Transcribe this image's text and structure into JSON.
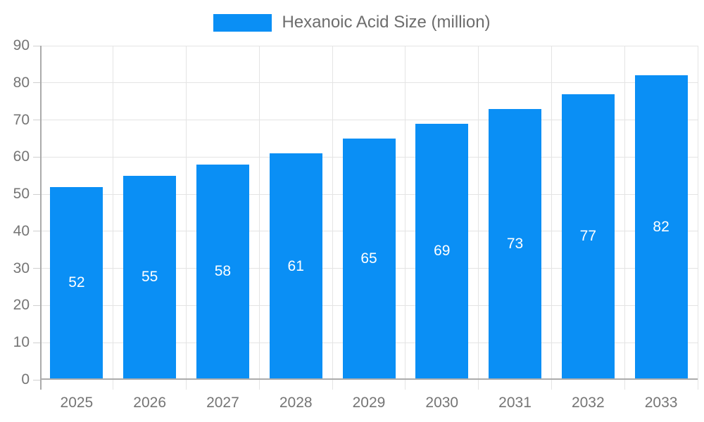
{
  "chart_data": {
    "type": "bar",
    "title": "",
    "xlabel": "",
    "ylabel": "",
    "categories": [
      "2025",
      "2026",
      "2027",
      "2028",
      "2029",
      "2030",
      "2031",
      "2032",
      "2033"
    ],
    "values": [
      52,
      55,
      58,
      61,
      65,
      69,
      73,
      77,
      82
    ],
    "series_label": "Hexanoic Acid Size (million)",
    "ylim": [
      0,
      90
    ],
    "ytick_step": 10,
    "grid": true,
    "legend_position": "top-center",
    "value_labels": "inside-center",
    "colors": {
      "bar": "#0a8ff5",
      "grid": "#e4e4e4",
      "axis": "#ababab",
      "tick": "#d0d0d0",
      "axis_label": "#757575",
      "value_label": "#ffffff",
      "legend_text": "#6d6d6d",
      "background": "#ffffff"
    }
  }
}
